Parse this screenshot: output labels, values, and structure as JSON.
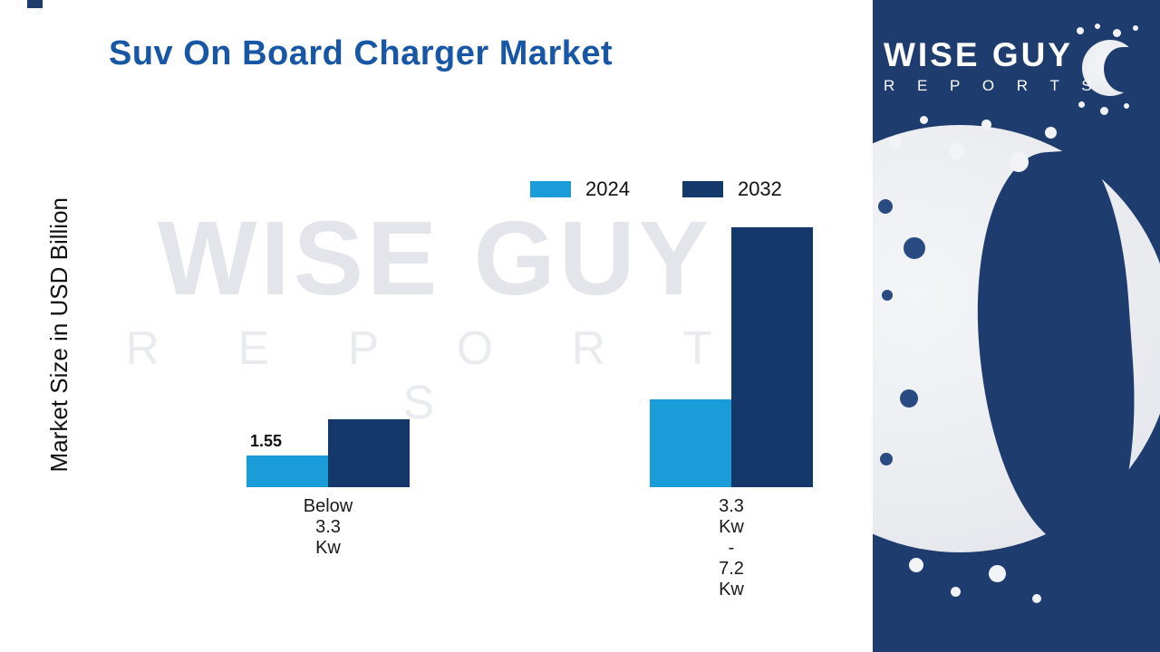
{
  "header": {
    "title": "Suv On Board Charger Market",
    "title_color": "#1757a6"
  },
  "y_axis_label": "Market Size in USD Billion",
  "legend": {
    "items": [
      {
        "label": "2024",
        "color": "#1a9cd8"
      },
      {
        "label": "2032",
        "color": "#15386b"
      }
    ]
  },
  "watermark": {
    "line1": "WISE GUY",
    "line2": "R E P O R T S"
  },
  "brand": {
    "line1": "WISE GUY",
    "line2": "R E P O R T S",
    "panel_color": "#1e3c6e"
  },
  "chart_data": {
    "type": "bar",
    "title": "Suv On Board Charger Market",
    "ylabel": "Market Size in USD Billion",
    "categories": [
      "Below 3.3 Kw",
      "3.3 Kw - 7.2 Kw"
    ],
    "category_display": [
      "Below\n3.3\nKw",
      "3.3\nKw\n-\n7.2\nKw"
    ],
    "series": [
      {
        "name": "2024",
        "color": "#1a9cd8",
        "values": [
          1.55,
          4.3
        ]
      },
      {
        "name": "2032",
        "color": "#15386b",
        "values": [
          3.3,
          12.7
        ]
      }
    ],
    "data_labels": [
      {
        "seriesIndex": 0,
        "categoryIndex": 0,
        "text": "1.55"
      }
    ],
    "ylim": [
      0,
      14
    ],
    "grid": false,
    "legend_position": "top"
  }
}
